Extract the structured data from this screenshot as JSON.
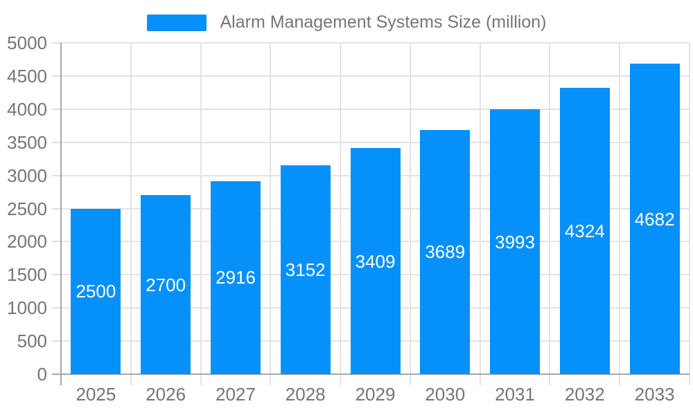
{
  "chart_data": {
    "type": "bar",
    "title": "Alarm Management Systems Size (million)",
    "categories": [
      "2025",
      "2026",
      "2027",
      "2028",
      "2029",
      "2030",
      "2031",
      "2032",
      "2033"
    ],
    "values": [
      2500,
      2700,
      2916,
      3152,
      3409,
      3689,
      3993,
      4324,
      4682
    ],
    "xlabel": "",
    "ylabel": "",
    "ylim": [
      0,
      5000
    ],
    "ytick_step": 500,
    "ytick_labels": [
      "0",
      "500",
      "1000",
      "1500",
      "2000",
      "2500",
      "3000",
      "3500",
      "4000",
      "4500",
      "5000"
    ],
    "grid": true,
    "legend_position": "top",
    "colors": {
      "bar": "#0590FA",
      "bar_label_text": "#ffffff",
      "axis_text": "#757575",
      "gridline": "#e3e3e3",
      "axis_line": "#a6a6a6",
      "y_tick": "#dedede"
    }
  }
}
